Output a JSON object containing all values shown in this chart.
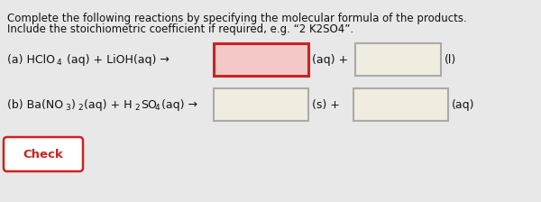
{
  "title_line1": "Complete the following reactions by specifying the molecular formula of the products.",
  "title_line2": "Include the stoichiometric coefficient if required, e.g. “2 K2SO4”.",
  "check_label": "Check",
  "bg_color": "#e8e8e8",
  "box_fill_a1": "#f5c8c8",
  "box_fill_normal": "#f0ece0",
  "box_border_red": "#cc2222",
  "box_border_normal": "#aaaaaa",
  "text_color": "#111111",
  "check_bg": "#ffffff",
  "check_border": "#cc2222",
  "check_text_color": "#cc2222",
  "title_fontsize": 8.5,
  "body_fontsize": 9.0,
  "sub_fontsize": 6.5
}
